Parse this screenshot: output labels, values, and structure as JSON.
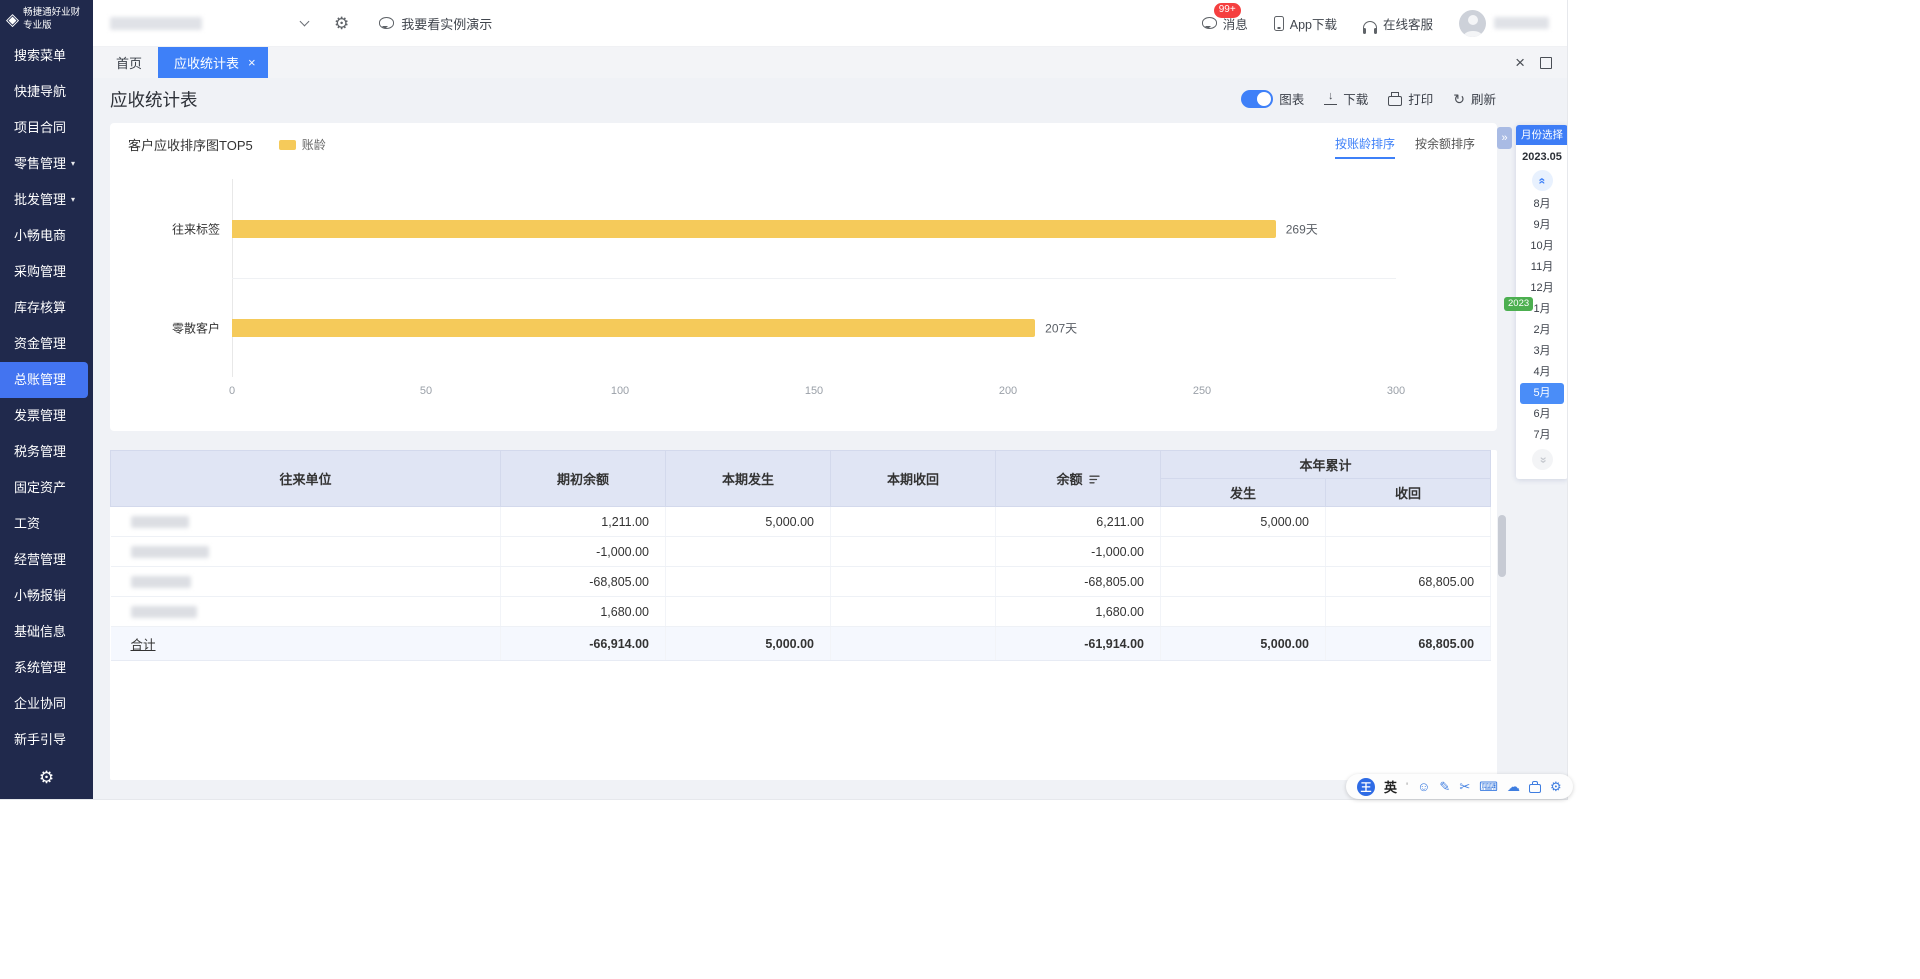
{
  "brand": {
    "line1": "畅捷通好业财",
    "line2": "专业版"
  },
  "sidebar": {
    "items": [
      {
        "label": "搜索菜单"
      },
      {
        "label": "快捷导航"
      },
      {
        "label": "项目合同"
      },
      {
        "label": "零售管理",
        "caret": true
      },
      {
        "label": "批发管理",
        "caret": true
      },
      {
        "label": "小畅电商"
      },
      {
        "label": "采购管理"
      },
      {
        "label": "库存核算"
      },
      {
        "label": "资金管理"
      },
      {
        "label": "总账管理",
        "active": true
      },
      {
        "label": "发票管理"
      },
      {
        "label": "税务管理"
      },
      {
        "label": "固定资产"
      },
      {
        "label": "工资"
      },
      {
        "label": "经营管理"
      },
      {
        "label": "小畅报销"
      },
      {
        "label": "基础信息"
      },
      {
        "label": "系统管理"
      },
      {
        "label": "企业协同"
      },
      {
        "label": "新手引导"
      }
    ]
  },
  "topbar": {
    "demo_text": "我要看实例演示",
    "messages_label": "消息",
    "messages_badge": "99+",
    "app_download_label": "App下载",
    "support_label": "在线客服"
  },
  "tabs": [
    {
      "label": "首页",
      "active": false,
      "closable": false
    },
    {
      "label": "应收统计表",
      "active": true,
      "closable": true
    }
  ],
  "page": {
    "title": "应收统计表",
    "controls": {
      "chart_toggle_label": "图表",
      "download_label": "下载",
      "print_label": "打印",
      "refresh_label": "刷新"
    }
  },
  "chart_data": {
    "type": "bar",
    "orientation": "horizontal",
    "title": "客户应收排序图TOP5",
    "legend": [
      "账龄"
    ],
    "categories": [
      "往来标签",
      "零散客户"
    ],
    "values": [
      269,
      207
    ],
    "value_labels": [
      "269天",
      "207天"
    ],
    "x_ticks": [
      "0",
      "50",
      "100",
      "150",
      "200",
      "250",
      "300"
    ],
    "xlim": [
      0,
      300
    ],
    "bar_color": "#F5CA5A",
    "grid": "category split line",
    "legend_position": "top-left",
    "sort_tabs": [
      {
        "label": "按账龄排序",
        "active": true
      },
      {
        "label": "按余额排序",
        "active": false
      }
    ]
  },
  "table": {
    "columns": [
      "往来单位",
      "期初余额",
      "本期发生",
      "本期收回",
      "余额",
      "本年累计"
    ],
    "subcolumns": [
      "发生",
      "收回"
    ],
    "rows": [
      {
        "name_redacted": true,
        "values": [
          "1,211.00",
          "5,000.00",
          "",
          "6,211.00",
          "5,000.00",
          ""
        ]
      },
      {
        "name_redacted": true,
        "values": [
          "-1,000.00",
          "",
          "",
          "-1,000.00",
          "",
          ""
        ]
      },
      {
        "name_redacted": true,
        "values": [
          "-68,805.00",
          "",
          "",
          "-68,805.00",
          "",
          "68,805.00"
        ]
      },
      {
        "name_redacted": true,
        "values": [
          "1,680.00",
          "",
          "",
          "1,680.00",
          "",
          ""
        ]
      }
    ],
    "total": {
      "label": "合计",
      "values": [
        "-66,914.00",
        "5,000.00",
        "",
        "-61,914.00",
        "5,000.00",
        "68,805.00"
      ]
    }
  },
  "month_panel": {
    "title": "月份选择",
    "current": "2023.05",
    "year_badge": "2023",
    "months": [
      {
        "label": "8月"
      },
      {
        "label": "9月"
      },
      {
        "label": "10月"
      },
      {
        "label": "11月"
      },
      {
        "label": "12月"
      },
      {
        "label": "1月"
      },
      {
        "label": "2月"
      },
      {
        "label": "3月"
      },
      {
        "label": "4月"
      },
      {
        "label": "5月",
        "active": true
      },
      {
        "label": "6月"
      },
      {
        "label": "7月"
      }
    ]
  },
  "ime": {
    "logo_text": "王",
    "lang": "英"
  },
  "colors": {
    "accent_blue": "#3E80F8",
    "sidebar_navy": "#20294C",
    "bar_yellow": "#F5CA5A",
    "table_header": "#E0E5F4",
    "badge_red": "#F53F3F",
    "year_badge_green": "#4CAF50"
  }
}
